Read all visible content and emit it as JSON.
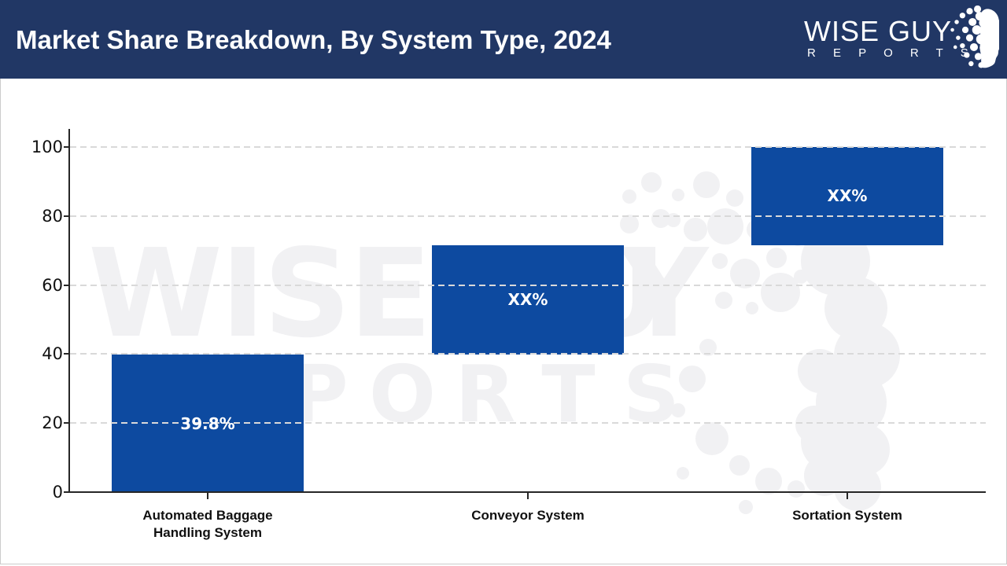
{
  "header": {
    "title": "Market Share Breakdown, By System Type, 2024",
    "logo": {
      "wordmark": "WISE GUY",
      "subtext": "R E P O R T S"
    }
  },
  "watermark": {
    "line1": "WISE GU",
    "line1_tail": "Y",
    "line2_letters": [
      "R",
      "E",
      "P",
      "O",
      "R",
      "T",
      "S"
    ]
  },
  "chart_data": {
    "type": "bar",
    "variant": "waterfall",
    "title": "Market Share Breakdown, By System Type, 2024",
    "categories": [
      "Automated Baggage Handling System",
      "Conveyor System",
      "Sortation System"
    ],
    "segments": [
      {
        "category": "Automated Baggage Handling System",
        "start": 0,
        "end": 39.8,
        "label": "39.8%"
      },
      {
        "category": "Conveyor System",
        "start": 39.8,
        "end": 71.6,
        "label": "XX%"
      },
      {
        "category": "Sortation System",
        "start": 71.6,
        "end": 100,
        "label": "XX%"
      }
    ],
    "ylim": [
      0,
      105
    ],
    "yticks": [
      0,
      20,
      40,
      60,
      80,
      100
    ],
    "grid": "horizontal-dashed",
    "legend": "none",
    "bar_color": "#0d4aa0",
    "value_label_color": "#ffffff",
    "axis_color": "#262626",
    "gridline_color": "#d9d9d9",
    "header_color": "#213765",
    "watermark_color": "#f1f1f3"
  }
}
